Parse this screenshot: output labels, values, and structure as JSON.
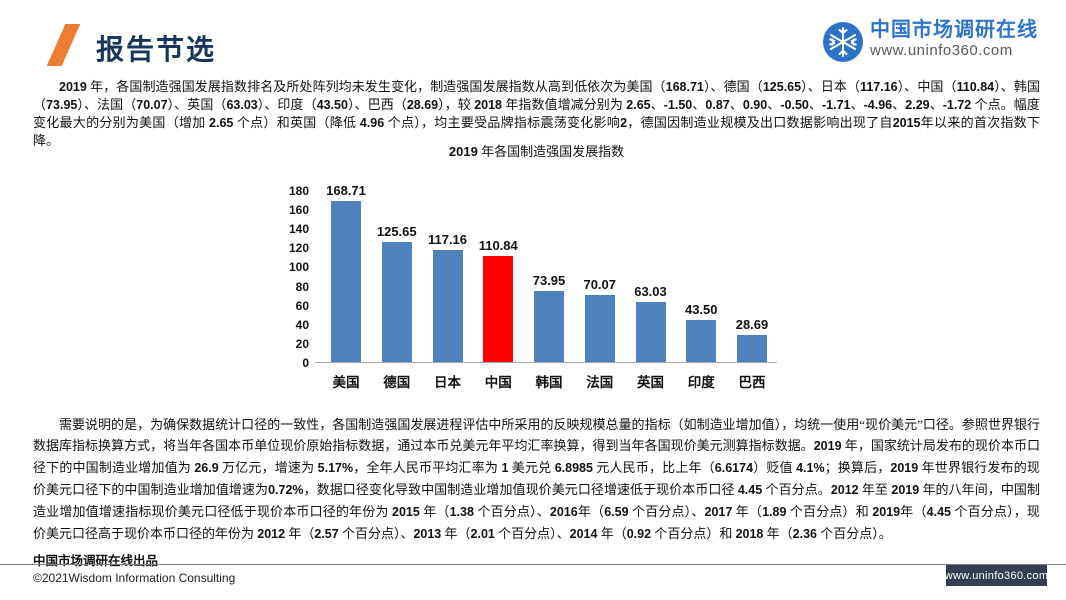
{
  "header": {
    "title": "报告节选"
  },
  "logo": {
    "name": "中国市场调研在线",
    "url": "www.uninfo360.com"
  },
  "paragraphs": {
    "p1": "**2019** 年，各国制造强国发展指数排名及所处阵列均未发生变化，制造强国发展指数从高到低依次为美国（**168.71**）、德国（**125.65**）、日本（**117.16**）、中国（**110.84**）、韩国（**73.95**）、法国（**70.07**）、英国（**63.03**）、印度（**43.50**）、巴西（**28.69**），较 **2018** 年指数值增减分别为 **2.65**、**-1.50**、**0.87**、**0.90**、**-0.50**、**-1.71**、**-4.96**、**2.29**、**-1.72** 个点。幅度变化最大的分别为美国（增加 **2.65** 个点）和英国（降低 **4.96** 个点），均主要受品牌指标震荡变化影响**2**，德国因制造业规模及出口数据影响出现了自**2015**年以来的首次指数下降。",
    "p2": "需要说明的是，为确保数据统计口径的一致性，各国制造强国发展进程评估中所采用的反映规模总量的指标（如制造业增加值），均统一使用“现价美元”口径。参照世界银行数据库指标换算方式，将当年各国本币单位现价原始指标数据，通过本币兑美元年平均汇率换算，得到当年各国现价美元测算指标数据。**2019** 年，国家统计局发布的现价本币口径下的中国制造业增加值为 **26.9** 万亿元，增速为 **5.17%**，全年人民币平均汇率为 **1** 美元兑 **6.8985** 元人民币，比上年（**6.6174**）贬值 **4.1%**；换算后，**2019** 年世界银行发布的现价美元口径下的中国制造业增加值增速为**0.72%**，数据口径变化导致中国制造业增加值现价美元口径增速低于现价本币口径 **4.45** 个百分点。**2012** 年至 **2019** 年的八年间，中国制造业增加值增速指标现价美元口径低于现价本币口径的年份为 **2015** 年（**1.38** 个百分点）、**2016**年（**6.59** 个百分点）、**2017** 年（**1.89** 个百分点）和 **2019**年（**4.45** 个百分点），现价美元口径高于现价本币口径的年份为 **2012** 年（**2.57** 个百分点）、**2013** 年（**2.01** 个百分点）、**2014** 年（**0.92** 个百分点）和 **2018** 年（**2.36** 个百分点）。"
  },
  "chart_data": {
    "type": "bar",
    "title": "**2019** 年各国制造强国发展指数",
    "categories": [
      "美国",
      "德国",
      "日本",
      "中国",
      "韩国",
      "法国",
      "英国",
      "印度",
      "巴西"
    ],
    "values": [
      168.71,
      125.65,
      117.16,
      110.84,
      73.95,
      70.07,
      63.03,
      43.5,
      28.69
    ],
    "value_labels": [
      "168.71",
      "125.65",
      "117.16",
      "110.84",
      "73.95",
      "70.07",
      "63.03",
      "43.50",
      "28.69"
    ],
    "highlight_category": "中国",
    "bar_color": "#4F81BD",
    "highlight_color": "#FF0000",
    "xlabel": "",
    "ylabel": "",
    "ylim": [
      0,
      180
    ],
    "ytick_step": 20,
    "grid": false,
    "legend": "none"
  },
  "footer": {
    "produced_by": "中国市场调研在线出品",
    "copyright": "©2021Wisdom Information Consulting",
    "site": "www.uninfo360.com"
  },
  "colors": {
    "accent_orange": "#ED7D31",
    "header_navy": "#17365D",
    "logo_blue": "#2E74C9",
    "bar_blue": "#4F81BD",
    "bar_red": "#FF0000",
    "footer_badge": "#333F50"
  }
}
